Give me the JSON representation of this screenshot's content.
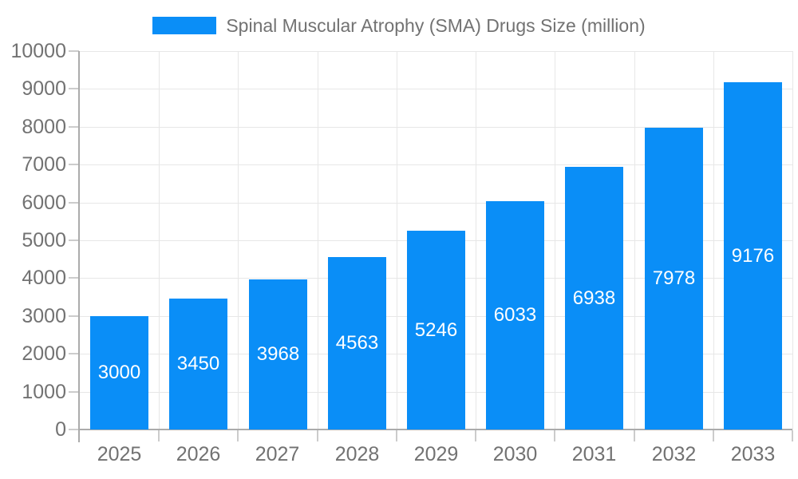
{
  "legend": {
    "label": "Spinal Muscular Atrophy (SMA) Drugs Size (million)"
  },
  "chart_data": {
    "type": "bar",
    "title": "Spinal Muscular Atrophy (SMA) Drugs Size (million)",
    "categories": [
      "2025",
      "2026",
      "2027",
      "2028",
      "2029",
      "2030",
      "2031",
      "2032",
      "2033"
    ],
    "values": [
      3000,
      3450,
      3968,
      4563,
      5246,
      6033,
      6938,
      7978,
      9176
    ],
    "xlabel": "",
    "ylabel": "",
    "ylim": [
      0,
      10000
    ],
    "ytick_step": 1000,
    "grid": true,
    "legend_position": "top-center",
    "colors": {
      "bar": "#0a8ef7",
      "axis_label": "#727272",
      "value_label": "#ffffff",
      "gridline": "#e7e7e7",
      "axis_line": "#ababab",
      "tick": "#cccccc",
      "background": "#ffffff"
    }
  }
}
